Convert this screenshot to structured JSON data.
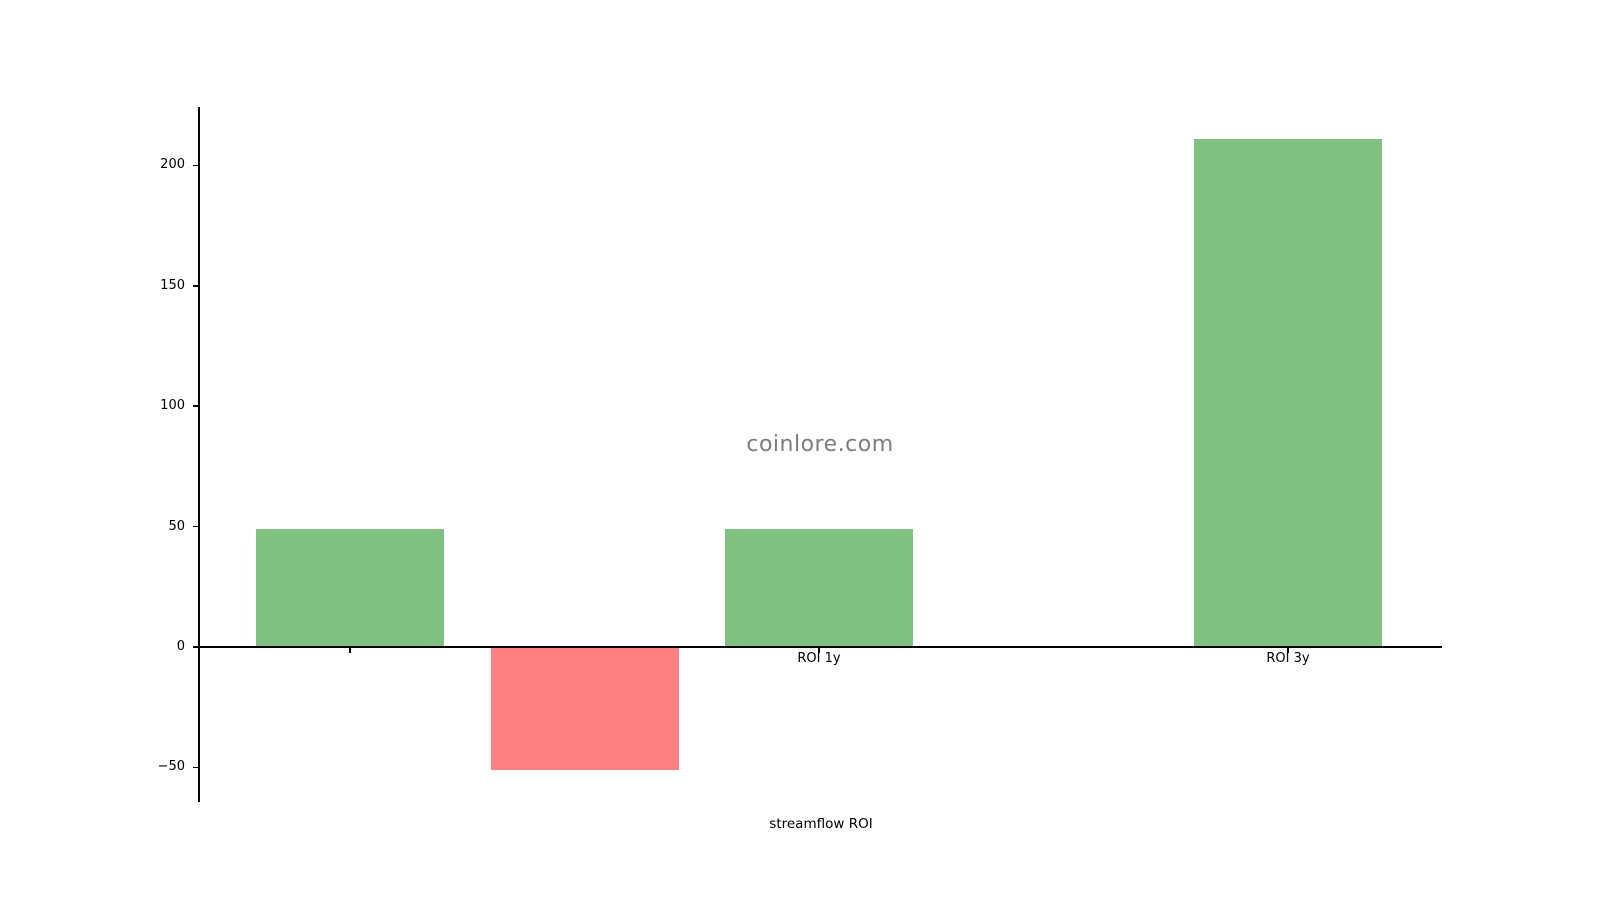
{
  "page": {
    "background": "#ffffff"
  },
  "watermark": {
    "text": "coinlore.com",
    "color": "#7d7d7d"
  },
  "chart_data": {
    "type": "bar",
    "title": "",
    "xlabel": "streamflow ROI",
    "ylabel": "",
    "categories": [
      "",
      "",
      "ROI 1y",
      "",
      "ROI 3y"
    ],
    "series": [
      {
        "name": "streamflow ROI",
        "values": [
          49,
          -51,
          49,
          null,
          211
        ]
      }
    ],
    "bars": [
      {
        "slot": 0,
        "value": 49,
        "color_key": "positive",
        "label": ""
      },
      {
        "slot": 1,
        "value": -51,
        "color_key": "negative",
        "label": ""
      },
      {
        "slot": 2,
        "value": 49,
        "color_key": "positive",
        "label": "ROI 1y"
      },
      {
        "slot": 4,
        "value": 211,
        "color_key": "positive",
        "label": "ROI 3y"
      }
    ],
    "yticks": [
      200,
      150,
      100,
      50,
      0,
      -50
    ],
    "ytick_labels": [
      "200",
      "150",
      "100",
      "50",
      "0",
      "−50"
    ],
    "xticks": [
      {
        "slot": 0,
        "label": ""
      },
      {
        "slot": 2,
        "label": "ROI 1y"
      },
      {
        "slot": 4,
        "label": "ROI 3y"
      }
    ],
    "ylim": [
      -64,
      224
    ],
    "grid": false,
    "legend": null,
    "colors": {
      "positive": "#80c080",
      "negative": "#ff8080",
      "axis": "#000000"
    }
  }
}
